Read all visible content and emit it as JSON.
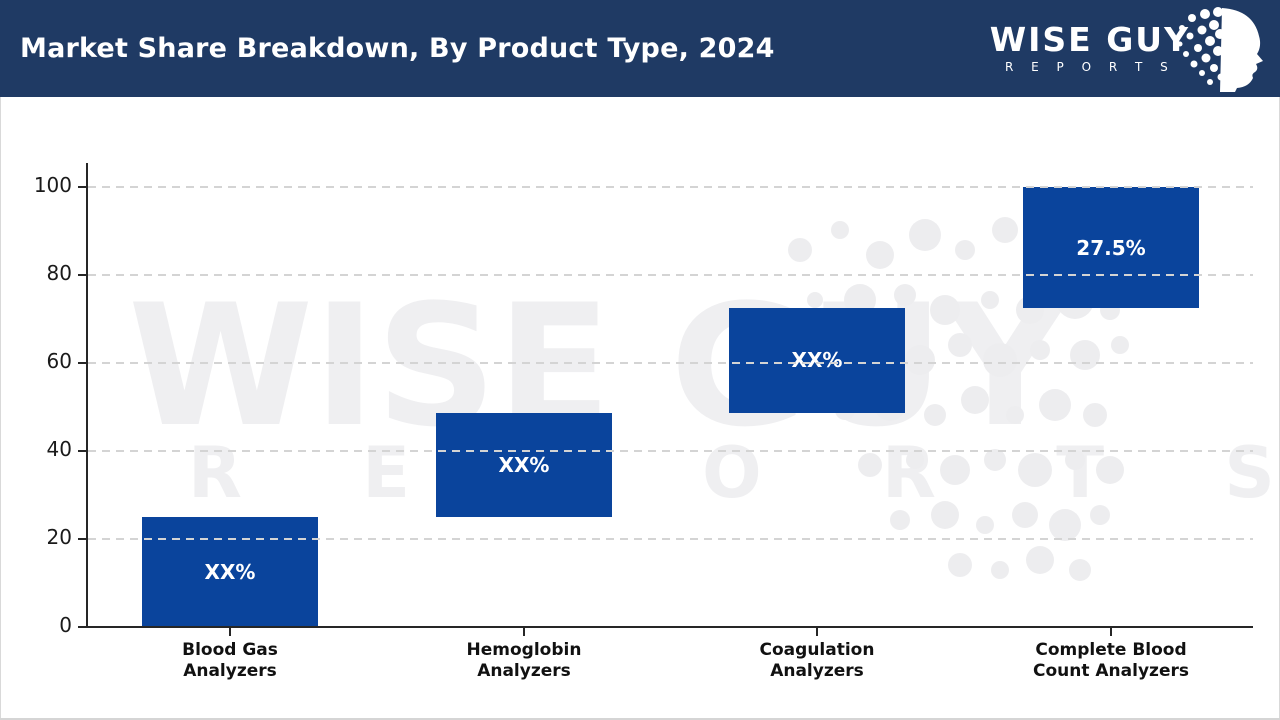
{
  "header": {
    "title": "Market Share Breakdown, By Product Type, 2024",
    "logo": {
      "name_line": "WISE GUY",
      "sub_line": "R E P O R T S"
    }
  },
  "watermark": {
    "big_text": "WISE GUY",
    "sub_text": "R E P O R T S"
  },
  "colors": {
    "header_bg": "#1f3a64",
    "bar_fill": "#0a449c",
    "bar_label_text": "#ffffff",
    "axis": "#262626",
    "gridline": "#d4d4d4",
    "watermark": "#efeff1",
    "page_bg": "#ffffff"
  },
  "chart_data": {
    "type": "bar",
    "subtype": "waterfall-floating-segments",
    "title": "Market Share Breakdown, By Product Type, 2024",
    "categories": [
      "Blood Gas Analyzers",
      "Hemoglobin Analyzers",
      "Coagulation Analyzers",
      "Complete Blood Count Analyzers"
    ],
    "categories_lines": [
      [
        "Blood Gas",
        "Analyzers"
      ],
      [
        "Hemoglobin",
        "Analyzers"
      ],
      [
        "Coagulation",
        "Analyzers"
      ],
      [
        "Complete Blood",
        "Count Analyzers"
      ]
    ],
    "values": [
      25,
      23.75,
      23.75,
      27.5
    ],
    "segments": [
      {
        "category": "Blood Gas Analyzers",
        "start": 0,
        "end": 25,
        "label": "XX%"
      },
      {
        "category": "Hemoglobin Analyzers",
        "start": 25,
        "end": 48.75,
        "label": "XX%"
      },
      {
        "category": "Coagulation Analyzers",
        "start": 48.75,
        "end": 72.5,
        "label": "XX%"
      },
      {
        "category": "Complete Blood Count Analyzers",
        "start": 72.5,
        "end": 100,
        "label": "27.5%"
      }
    ],
    "ylim": [
      0,
      100
    ],
    "yticks": [
      0,
      20,
      40,
      60,
      80,
      100
    ],
    "xlabel": "",
    "ylabel": "",
    "grid": "horizontal-dashed",
    "legend": "none"
  }
}
